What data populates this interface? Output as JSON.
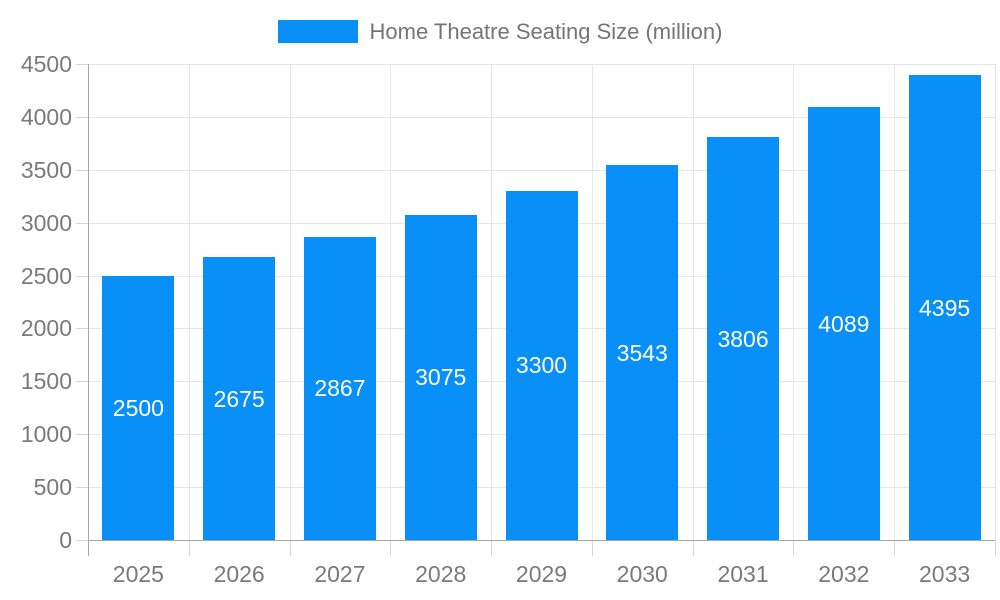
{
  "legend": {
    "label": "Home Theatre Seating Size (million)"
  },
  "colors": {
    "bar": "#0890F8",
    "bar_label": "#FFFFFF",
    "axis_label": "#7A7A7A",
    "legend_text": "#757575",
    "gridline": "#E6E6E6",
    "tick": "#D6D6D6",
    "axis_line": "#A6A6A6",
    "background": "#FFFFFF"
  },
  "chart_data": {
    "type": "bar",
    "title": "",
    "xlabel": "",
    "ylabel": "",
    "categories": [
      "2025",
      "2026",
      "2027",
      "2028",
      "2029",
      "2030",
      "2031",
      "2032",
      "2033"
    ],
    "series": [
      {
        "name": "Home Theatre Seating Size (million)",
        "values": [
          2500,
          2675,
          2867,
          3075,
          3300,
          3543,
          3806,
          4089,
          4395
        ]
      }
    ],
    "ylim": [
      0,
      4500
    ],
    "ytick_step": 500,
    "ytick_labels": [
      "0",
      "500",
      "1000",
      "1500",
      "2000",
      "2500",
      "3000",
      "3500",
      "4000",
      "4500"
    ],
    "grid": true,
    "legend_position": "top",
    "data_labels": "inside-center"
  }
}
